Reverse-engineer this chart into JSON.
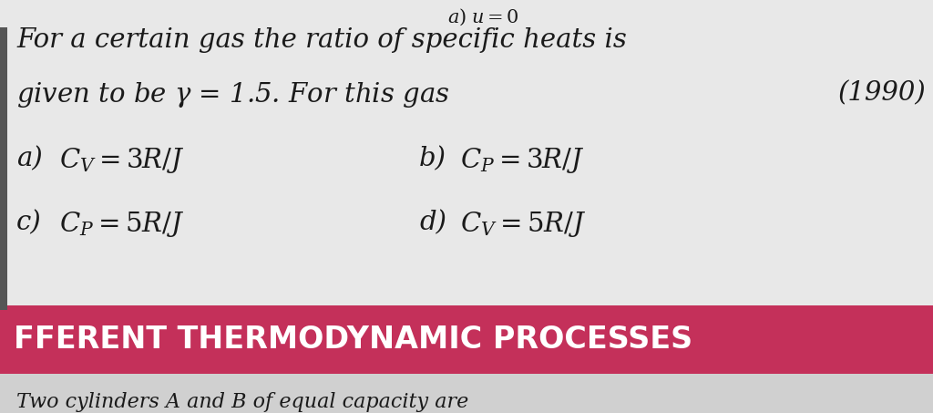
{
  "background_color": "#e8e8e8",
  "top_text": "$a)\\;u=0$",
  "question_line1": "For a certain gas the ratio of specific heats is",
  "question_line2": "given to be $\\gamma$ = 1.5. For this gas",
  "year": "(1990)",
  "opt_a": "$C_V = 3R/J$",
  "opt_b": "$C_P = 3R/J$",
  "opt_c": "$C_P = 5R/J$",
  "opt_d": "$C_V = 5R/J$",
  "opt_a_label": "a)",
  "opt_b_label": "b)",
  "opt_c_label": "c)",
  "opt_d_label": "d)",
  "banner_text": "FFERENT THERMODYNAMIC PROCESSES",
  "banner_bg": "#c4305a",
  "banner_text_color": "#ffffff",
  "text_color": "#1a1a1a",
  "font_size_question": 21,
  "font_size_options": 21,
  "font_size_banner": 24,
  "font_size_top": 15,
  "font_size_label": 21
}
